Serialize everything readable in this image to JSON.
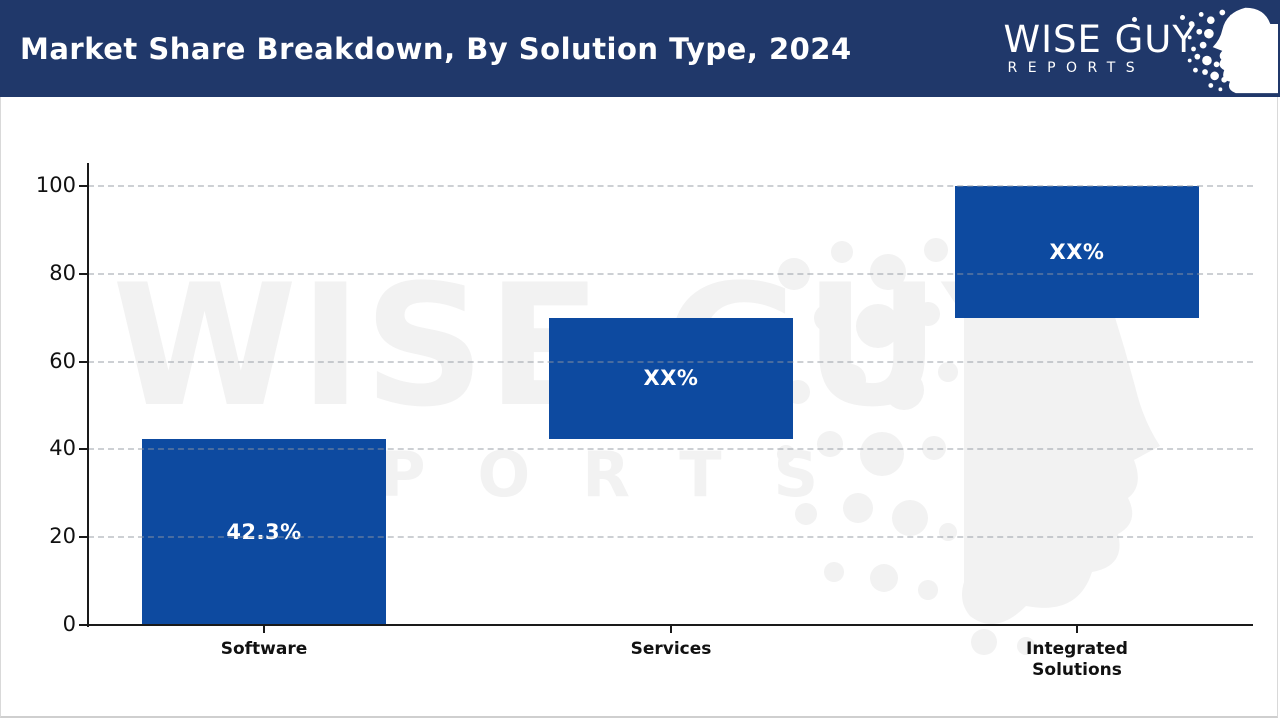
{
  "header": {
    "title": "Market Share Breakdown, By Solution Type, 2024",
    "brand": {
      "line1": "WISE GUY",
      "line2": "REPORTS"
    },
    "bg_color": "#20386a"
  },
  "watermark": {
    "line1": "WISE GUY",
    "line2": "REPORTS"
  },
  "icons": {
    "brand_face": "dotted-face-profile-icon",
    "watermark_face": "dotted-face-profile-watermark"
  },
  "chart_data": {
    "type": "bar",
    "subtype": "floating-segment-waterfall",
    "title": "Market Share Breakdown, By Solution Type, 2024",
    "categories": [
      "Software",
      "Services",
      "Integrated Solutions"
    ],
    "segments": [
      {
        "category": "Software",
        "start": 0,
        "end": 42.3,
        "label": "42.3%"
      },
      {
        "category": "Services",
        "start": 42.3,
        "end": 70,
        "label": "XX%"
      },
      {
        "category": "Integrated Solutions",
        "start": 70,
        "end": 100,
        "label": "XX%"
      }
    ],
    "xlabel": "",
    "ylabel": "",
    "ylim": [
      0,
      100
    ],
    "yticks": [
      0,
      20,
      40,
      60,
      80,
      100
    ],
    "grid": "horizontal-dashed",
    "legend": "none",
    "bar_color": "#0d4aa0",
    "bar_label_color": "#ffffff",
    "axis_color": "#1a1a1a"
  }
}
